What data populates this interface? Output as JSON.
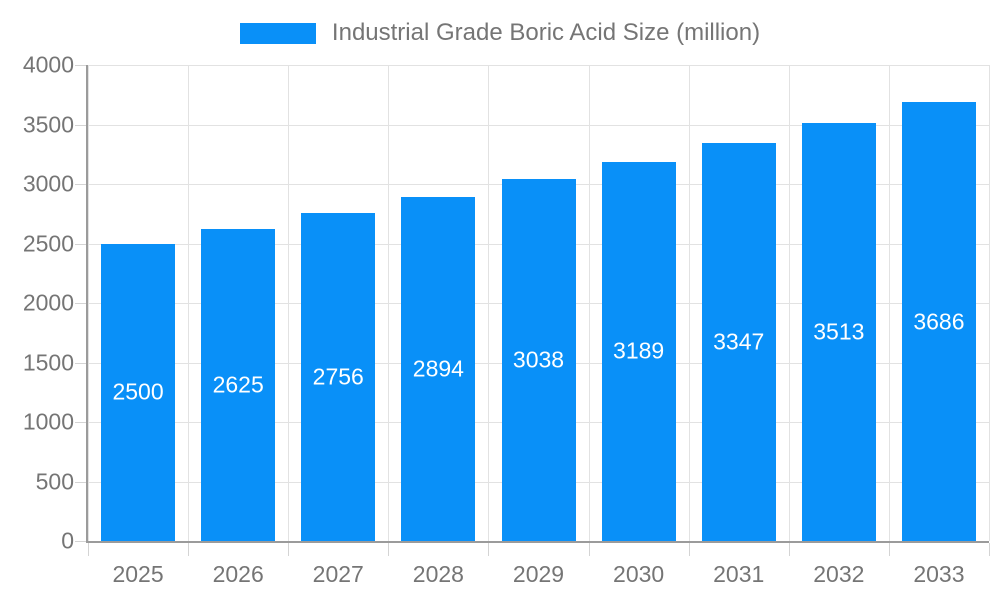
{
  "legend": {
    "label": "Industrial Grade Boric Acid Size (million)",
    "swatch_color": "#0990f8"
  },
  "chart_data": {
    "type": "bar",
    "title": "Industrial Grade Boric Acid Size (million)",
    "categories": [
      "2025",
      "2026",
      "2027",
      "2028",
      "2029",
      "2030",
      "2031",
      "2032",
      "2033"
    ],
    "values": [
      2500,
      2625,
      2756,
      2894,
      3038,
      3189,
      3347,
      3513,
      3686
    ],
    "xlabel": "",
    "ylabel": "",
    "ylim": [
      0,
      4000
    ],
    "ytick_step": 500,
    "ytick_labels": [
      "0",
      "500",
      "1000",
      "1500",
      "2000",
      "2500",
      "3000",
      "3500",
      "4000"
    ],
    "grid": true,
    "legend_position": "top",
    "bar_color": "#0990f8",
    "value_label_color": "#ffffff",
    "axis_text_color": "#757575"
  }
}
